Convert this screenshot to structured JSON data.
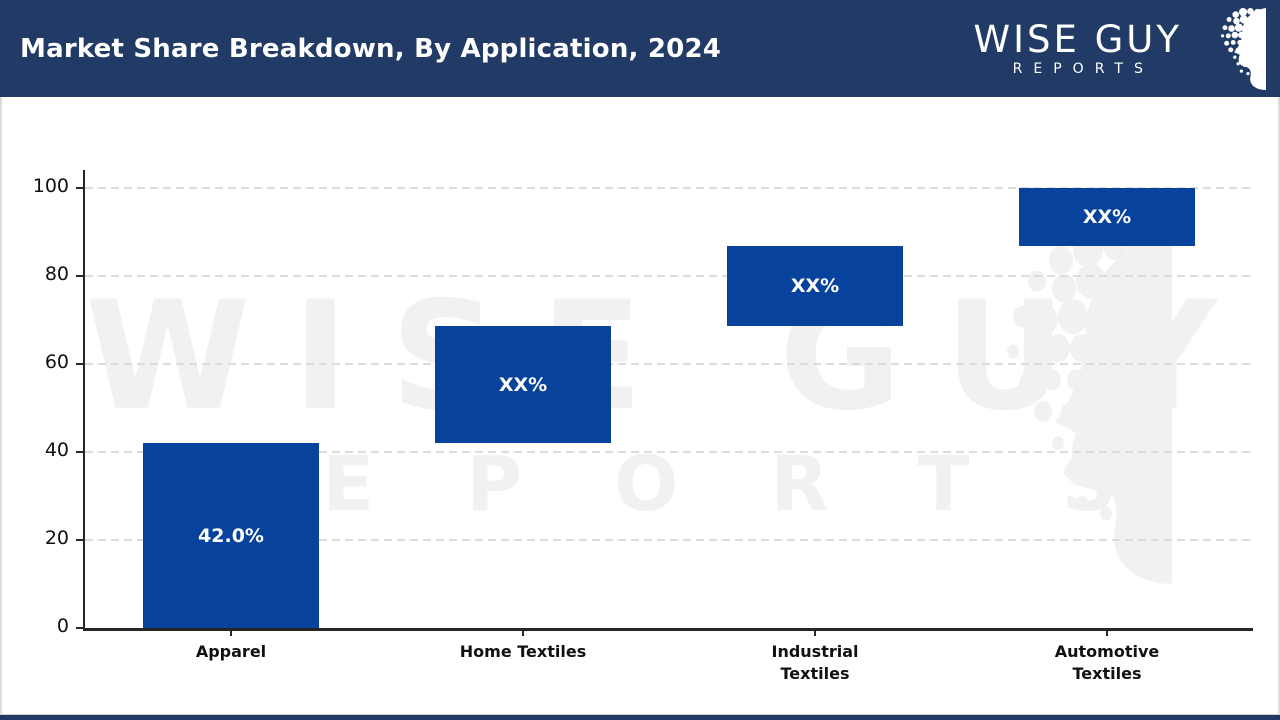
{
  "header": {
    "title": "Market Share Breakdown, By Application, 2024",
    "logo": {
      "line1": "WISE GUY",
      "line2": "REPORTS"
    }
  },
  "watermark": {
    "line1": "WISE GUY",
    "line2": "REPORTS"
  },
  "colors": {
    "header_bg": "#213a66",
    "bar": "#07439c",
    "grid": "#dcdcdc",
    "axis": "#262626",
    "tick_label": "#111111",
    "bar_label": "#ffffff",
    "watermark": "#f1f1f4"
  },
  "chart_data": {
    "type": "bar",
    "subtype": "waterfall",
    "title": "Market Share Breakdown, By Application, 2024",
    "xlabel": "",
    "ylabel": "",
    "categories": [
      "Apparel",
      "Home Textiles",
      "Industrial Textiles",
      "Automotive Textiles"
    ],
    "segments": [
      {
        "label": "Apparel",
        "start": 0,
        "end": 42,
        "value_label": "42.0%"
      },
      {
        "label": "Home Textiles",
        "start": 42,
        "end": 68.5,
        "value_label": "XX%"
      },
      {
        "label": "Industrial\nTextiles",
        "start": 68.5,
        "end": 86.75,
        "value_label": "XX%"
      },
      {
        "label": "Automotive\nTextiles",
        "start": 86.75,
        "end": 100,
        "value_label": "XX%"
      }
    ],
    "yticks": [
      0,
      20,
      40,
      60,
      80,
      100
    ],
    "ylim": [
      0,
      104
    ],
    "grid": "dashed-horizontal",
    "legend": "none",
    "bar_color": "#07439c",
    "label_color": "#ffffff"
  }
}
